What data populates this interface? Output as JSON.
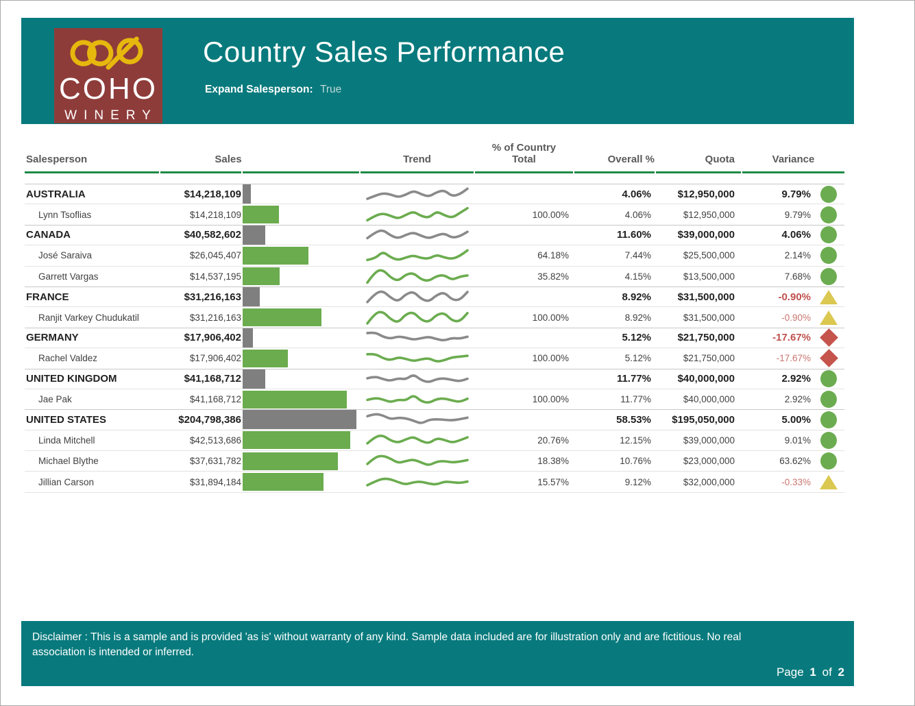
{
  "colors": {
    "teal": "#087A7D",
    "logo_maroon": "#8E3C3A",
    "logo_gold": "#E6B80E",
    "header_underline_green": "#1E8A47",
    "bar_green": "#6BAC4F",
    "bar_gray": "#7F7F7F",
    "spark_green": "#6BAC4F",
    "spark_gray": "#8A8A8A",
    "icon_positive_green": "#6CAC50",
    "icon_warning_yellow": "#DBC851",
    "icon_danger_red": "#C5544D",
    "negative_text_red": "#C0504D"
  },
  "header": {
    "title": "Country Sales Performance",
    "expand_label": "Expand Salesperson:",
    "expand_value": "True",
    "logo": {
      "line1": "COHO",
      "line2": "WINERY"
    }
  },
  "table": {
    "headers": {
      "salesperson": "Salesperson",
      "sales": "Sales",
      "trend": "Trend",
      "pct_country": "% of Country\nTotal",
      "overall": "Overall %",
      "quota": "Quota",
      "variance": "Variance"
    },
    "rows": [
      {
        "type": "country",
        "name": "AUSTRALIA",
        "sales": "$14,218,109",
        "sales_value": 14218109,
        "pct_country": "",
        "overall": "4.06%",
        "quota": "$12,950,000",
        "variance": "9.79%",
        "negative": false,
        "indicator": "circle",
        "spark": [
          0.18,
          0.38,
          0.55,
          0.48,
          0.28,
          0.45,
          0.72,
          0.48,
          0.32,
          0.62,
          0.75,
          0.35,
          0.48,
          0.85
        ]
      },
      {
        "type": "person",
        "name": "Lynn Tsoflias",
        "sales": "$14,218,109",
        "sales_value": 14218109,
        "pct_country": "100.00%",
        "overall": "4.06%",
        "quota": "$12,950,000",
        "variance": "9.79%",
        "negative": false,
        "indicator": "circle",
        "spark": [
          0.12,
          0.42,
          0.58,
          0.42,
          0.22,
          0.48,
          0.7,
          0.4,
          0.28,
          0.72,
          0.45,
          0.28,
          0.6,
          0.92
        ]
      },
      {
        "type": "country",
        "name": "CANADA",
        "sales": "$40,582,602",
        "sales_value": 40582602,
        "pct_country": "",
        "overall": "11.60%",
        "quota": "$39,000,000",
        "variance": "4.06%",
        "negative": false,
        "indicator": "circle",
        "spark": [
          0.3,
          0.68,
          0.85,
          0.48,
          0.28,
          0.52,
          0.68,
          0.45,
          0.28,
          0.48,
          0.62,
          0.32,
          0.42,
          0.72
        ]
      },
      {
        "type": "person",
        "name": "José Saraiva",
        "sales": "$26,045,407",
        "sales_value": 26045407,
        "pct_country": "64.18%",
        "overall": "7.44%",
        "quota": "$25,500,000",
        "variance": "2.14%",
        "negative": false,
        "indicator": "circle",
        "spark": [
          0.22,
          0.3,
          0.78,
          0.4,
          0.2,
          0.38,
          0.52,
          0.34,
          0.3,
          0.56,
          0.38,
          0.28,
          0.48,
          0.85
        ]
      },
      {
        "type": "person",
        "name": "Garrett Vargas",
        "sales": "$14,537,195",
        "sales_value": 14537195,
        "pct_country": "35.82%",
        "overall": "4.15%",
        "quota": "$13,500,000",
        "variance": "7.68%",
        "negative": false,
        "indicator": "circle",
        "spark": [
          0.08,
          0.8,
          0.95,
          0.42,
          0.18,
          0.62,
          0.72,
          0.28,
          0.18,
          0.52,
          0.58,
          0.25,
          0.48,
          0.55
        ]
      },
      {
        "type": "country",
        "name": "FRANCE",
        "sales": "$31,216,163",
        "sales_value": 31216163,
        "pct_country": "",
        "overall": "8.92%",
        "quota": "$31,500,000",
        "variance": "-0.90%",
        "negative": true,
        "indicator": "triangle",
        "spark": [
          0.15,
          0.72,
          0.9,
          0.45,
          0.18,
          0.68,
          0.85,
          0.35,
          0.18,
          0.62,
          0.8,
          0.3,
          0.28,
          0.82
        ]
      },
      {
        "type": "person",
        "name": "Ranjit Varkey Chudukatil",
        "sales": "$31,216,163",
        "sales_value": 31216163,
        "pct_country": "100.00%",
        "overall": "8.92%",
        "quota": "$31,500,000",
        "variance": "-0.90%",
        "negative": true,
        "indicator": "triangle",
        "spark": [
          0.1,
          0.78,
          0.9,
          0.38,
          0.14,
          0.72,
          0.85,
          0.32,
          0.18,
          0.68,
          0.8,
          0.28,
          0.22,
          0.78
        ]
      },
      {
        "type": "country",
        "name": "GERMANY",
        "sales": "$17,906,402",
        "sales_value": 17906402,
        "pct_country": "",
        "overall": "5.12%",
        "quota": "$21,750,000",
        "variance": "-17.67%",
        "negative": true,
        "indicator": "diamond",
        "spark": [
          0.82,
          0.88,
          0.58,
          0.45,
          0.6,
          0.52,
          0.38,
          0.48,
          0.58,
          0.42,
          0.32,
          0.5,
          0.45,
          0.58
        ]
      },
      {
        "type": "person",
        "name": "Rachel Valdez",
        "sales": "$17,906,402",
        "sales_value": 17906402,
        "pct_country": "100.00%",
        "overall": "5.12%",
        "quota": "$21,750,000",
        "variance": "-17.67%",
        "negative": true,
        "indicator": "diamond",
        "spark": [
          0.78,
          0.82,
          0.52,
          0.38,
          0.58,
          0.48,
          0.32,
          0.45,
          0.52,
          0.28,
          0.38,
          0.58,
          0.62,
          0.68
        ]
      },
      {
        "type": "country",
        "name": "UNITED KINGDOM",
        "sales": "$41,168,712",
        "sales_value": 41168712,
        "pct_country": "",
        "overall": "11.77%",
        "quota": "$40,000,000",
        "variance": "2.92%",
        "negative": false,
        "indicator": "circle",
        "spark": [
          0.55,
          0.68,
          0.5,
          0.38,
          0.55,
          0.48,
          0.82,
          0.42,
          0.28,
          0.5,
          0.55,
          0.44,
          0.35,
          0.52
        ]
      },
      {
        "type": "person",
        "name": "Jae Pak",
        "sales": "$41,168,712",
        "sales_value": 41168712,
        "pct_country": "100.00%",
        "overall": "11.77%",
        "quota": "$40,000,000",
        "variance": "2.92%",
        "negative": false,
        "indicator": "circle",
        "spark": [
          0.48,
          0.62,
          0.52,
          0.32,
          0.5,
          0.44,
          0.82,
          0.38,
          0.28,
          0.54,
          0.58,
          0.44,
          0.34,
          0.56
        ]
      },
      {
        "type": "country",
        "name": "UNITED STATES",
        "sales": "$204,798,386",
        "sales_value": 204798386,
        "pct_country": "",
        "overall": "58.53%",
        "quota": "$195,050,000",
        "variance": "5.00%",
        "negative": false,
        "indicator": "circle",
        "spark": [
          0.72,
          0.88,
          0.78,
          0.52,
          0.62,
          0.58,
          0.42,
          0.22,
          0.48,
          0.52,
          0.48,
          0.44,
          0.52,
          0.62
        ]
      },
      {
        "type": "person",
        "name": "Linda Mitchell",
        "sales": "$42,513,686",
        "sales_value": 42513686,
        "pct_country": "20.76%",
        "overall": "12.15%",
        "quota": "$39,000,000",
        "variance": "9.01%",
        "negative": false,
        "indicator": "circle",
        "spark": [
          0.28,
          0.72,
          0.82,
          0.48,
          0.32,
          0.55,
          0.72,
          0.42,
          0.28,
          0.62,
          0.52,
          0.32,
          0.48,
          0.68
        ]
      },
      {
        "type": "person",
        "name": "Michael Blythe",
        "sales": "$37,631,782",
        "sales_value": 37631782,
        "pct_country": "18.38%",
        "overall": "10.76%",
        "quota": "$23,000,000",
        "variance": "63.62%",
        "negative": false,
        "indicator": "circle",
        "spark": [
          0.32,
          0.78,
          0.88,
          0.68,
          0.38,
          0.52,
          0.62,
          0.42,
          0.22,
          0.48,
          0.52,
          0.42,
          0.48,
          0.58
        ]
      },
      {
        "type": "person",
        "name": "Jillian Carson",
        "sales": "$31,894,184",
        "sales_value": 31894184,
        "pct_country": "15.57%",
        "overall": "9.12%",
        "quota": "$32,000,000",
        "variance": "-0.33%",
        "negative": true,
        "indicator": "triangle",
        "spark": [
          0.28,
          0.52,
          0.72,
          0.68,
          0.48,
          0.32,
          0.48,
          0.52,
          0.38,
          0.32,
          0.52,
          0.48,
          0.42,
          0.52
        ]
      }
    ]
  },
  "footer": {
    "disclaimer": "Disclaimer : This is a sample and is provided 'as is' without warranty of any kind.  Sample data included are for illustration only and are fictitious.  No real association is intended or inferred.",
    "page_word": "Page",
    "page_current": "1",
    "of_word": "of",
    "page_total": "2"
  }
}
